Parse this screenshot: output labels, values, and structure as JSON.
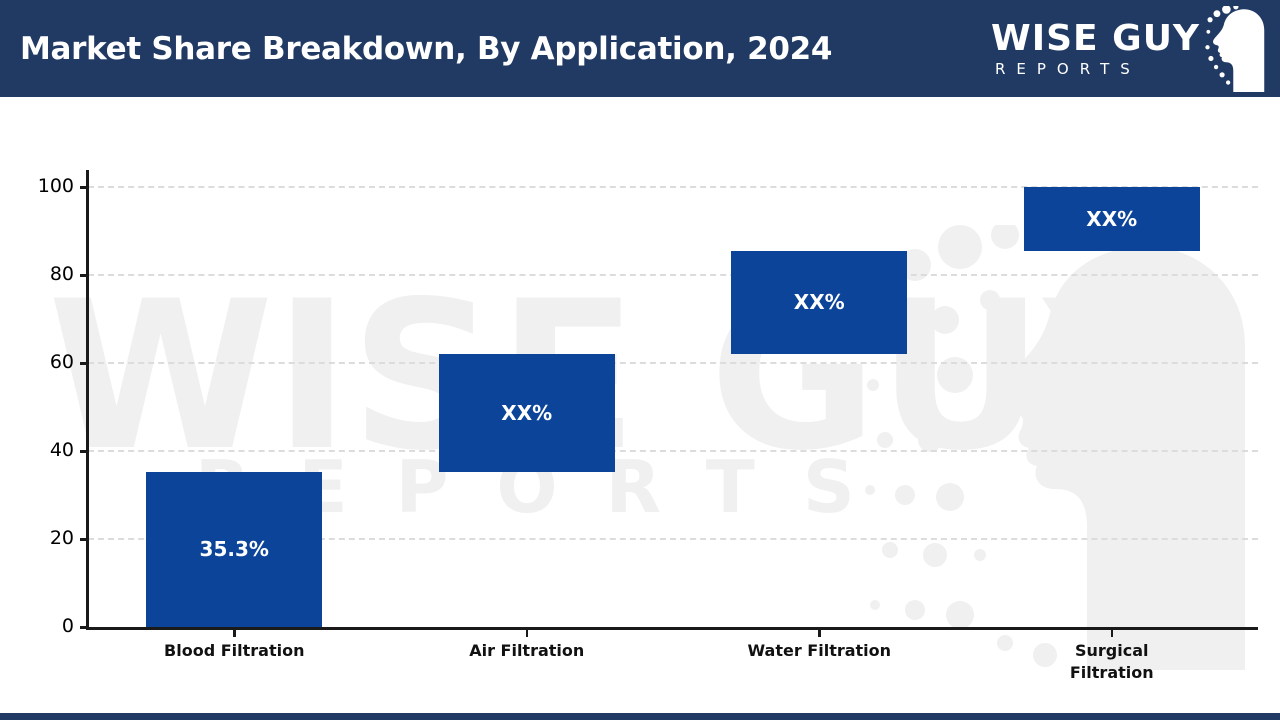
{
  "header": {
    "title": "Market Share Breakdown, By Application, 2024",
    "logo": {
      "line1": "WISE GUY",
      "line2": "REPORTS"
    }
  },
  "watermark": {
    "line1": "WISE GUY",
    "line2": "REPORTS"
  },
  "chart_data": {
    "type": "bar",
    "subtype": "waterfall",
    "title": "Market Share Breakdown, By Application, 2024",
    "categories": [
      "Blood Filtration",
      "Air Filtration",
      "Water Filtration",
      "Surgical\nFiltration"
    ],
    "segments": [
      {
        "category": "Blood Filtration",
        "start": 0,
        "end": 35.3,
        "label": "35.3%"
      },
      {
        "category": "Air Filtration",
        "start": 35.3,
        "end": 62,
        "label": "XX%"
      },
      {
        "category": "Water Filtration",
        "start": 62,
        "end": 85.5,
        "label": "XX%"
      },
      {
        "category": "Surgical Filtration",
        "start": 85.5,
        "end": 100,
        "label": "XX%"
      }
    ],
    "ylim": [
      0,
      100
    ],
    "yticks": [
      0,
      20,
      40,
      60,
      80,
      100
    ],
    "xlabel": "",
    "ylabel": "",
    "grid": "horizontal-dashed",
    "legend": "none",
    "colors": {
      "bar": "#0B4499",
      "bar_label": "#FFFFFF",
      "axis": "#1A1A1A",
      "grid": "#DCDCDC",
      "header_bg": "#213A64",
      "watermark": "#F0F0F0"
    }
  }
}
